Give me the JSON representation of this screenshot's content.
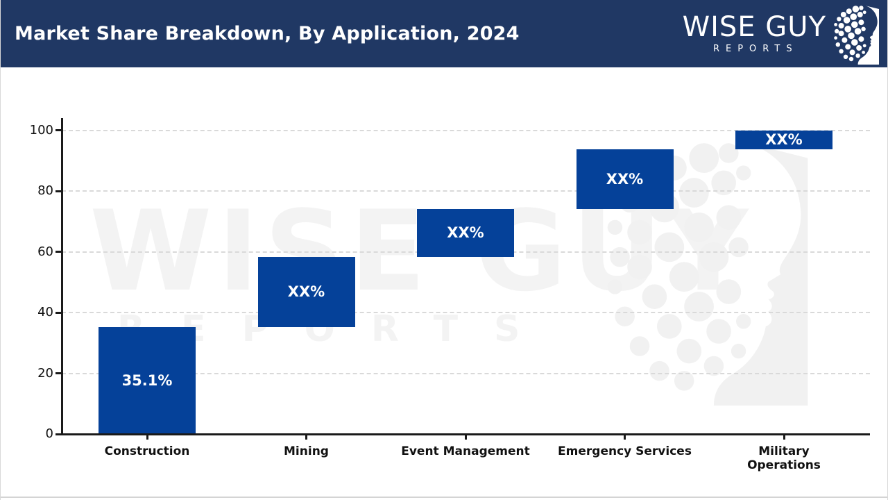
{
  "header": {
    "title": "Market Share Breakdown, By Application, 2024",
    "logo": {
      "line1": "WISE GUY",
      "line2": "REPORTS"
    }
  },
  "watermark": {
    "line1": "WISE GUY",
    "line2": "REPORTS"
  },
  "colors": {
    "header_bg": "#203864",
    "bar": "#054199",
    "grid": "#d9d9d9",
    "axis": "#1a1a1a",
    "bar_label": "#ffffff",
    "watermark": "#f3f3f3"
  },
  "chart_data": {
    "type": "bar",
    "subtype": "waterfall",
    "title": "Market Share Breakdown, By Application, 2024",
    "categories": [
      "Construction",
      "Mining",
      "Event Management",
      "Emergency Services",
      "Military\nOperations"
    ],
    "bar_labels": [
      "35.1%",
      "XX%",
      "XX%",
      "XX%",
      "XX%"
    ],
    "values": [
      35.1,
      23.3,
      15.6,
      19.8,
      6.2
    ],
    "segments": [
      {
        "start": 0,
        "end": 35.1
      },
      {
        "start": 35.1,
        "end": 58.4
      },
      {
        "start": 58.4,
        "end": 74.0
      },
      {
        "start": 74.0,
        "end": 93.8
      },
      {
        "start": 93.8,
        "end": 100.0
      }
    ],
    "y_ticks": [
      0,
      20,
      40,
      60,
      80,
      100
    ],
    "y_tick_labels": [
      "0",
      "20",
      "40",
      "60",
      "80",
      "100"
    ],
    "ylim": [
      0,
      104
    ],
    "xlabel": "",
    "ylabel": "",
    "grid": "dashed-horizontal",
    "legend": "none"
  }
}
